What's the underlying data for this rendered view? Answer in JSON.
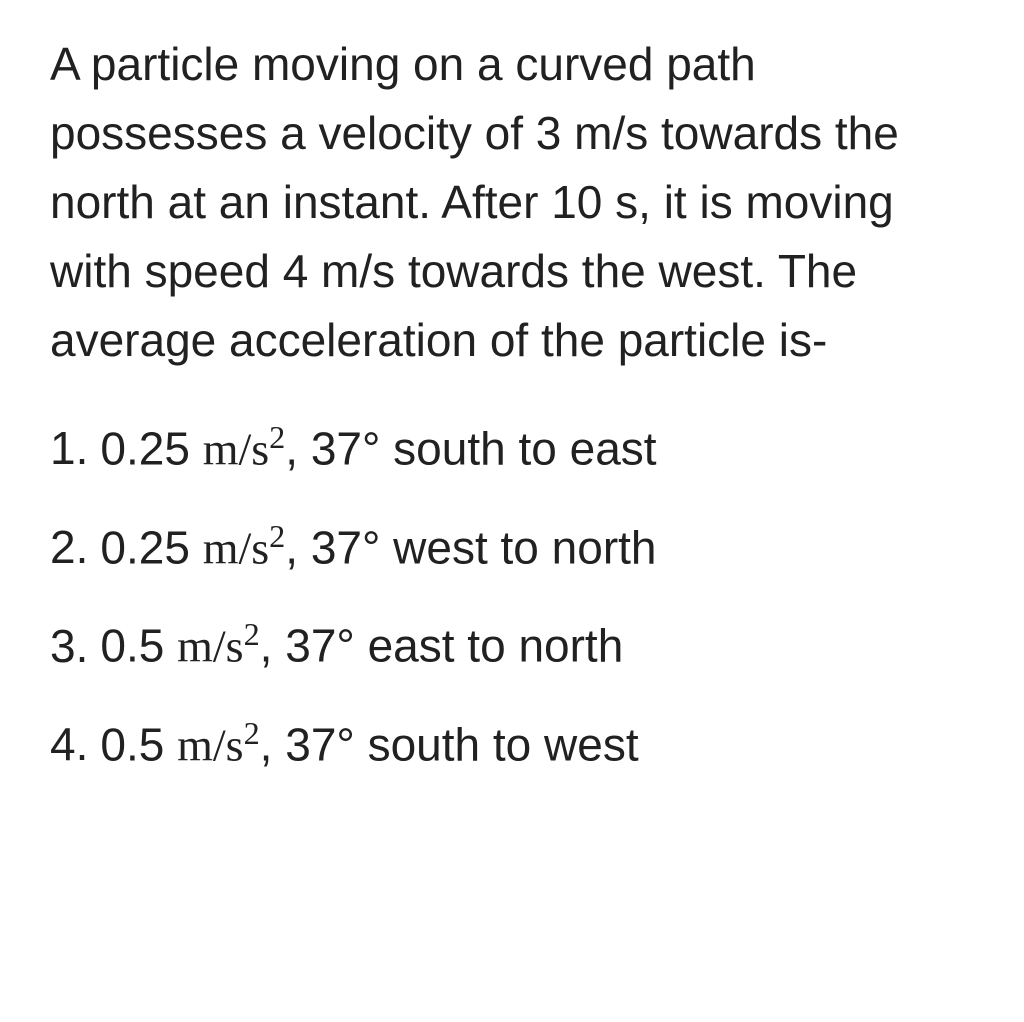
{
  "question": {
    "text": "A particle moving on a curved path possesses a velocity of 3 m/s towards the north at an instant. After 10 s, it is moving with speed 4 m/s towards the west. The average acceleration of the particle is-",
    "fontsize": 46,
    "color": "#212121"
  },
  "options": [
    {
      "number": "1.",
      "value": "0.25",
      "unit_prefix": "m",
      "unit_slash": "/",
      "unit_s": "s",
      "unit_exp": "2",
      "separator": ", ",
      "angle": "37°",
      "direction": " south to east"
    },
    {
      "number": "2.",
      "value": "0.25",
      "unit_prefix": "m",
      "unit_slash": "/",
      "unit_s": "s",
      "unit_exp": "2",
      "separator": ", ",
      "angle": "37°",
      "direction": " west to north"
    },
    {
      "number": "3.",
      "value": "0.5",
      "unit_prefix": "m",
      "unit_slash": "/",
      "unit_s": "s",
      "unit_exp": "2",
      "separator": ", ",
      "angle": "37°",
      "direction": " east to north"
    },
    {
      "number": "4.",
      "value": "0.5",
      "unit_prefix": "m",
      "unit_slash": "/",
      "unit_s": "s",
      "unit_exp": "2",
      "separator": ", ",
      "angle": "37°",
      "direction": " south to west"
    }
  ],
  "styling": {
    "background_color": "#ffffff",
    "text_color": "#212121",
    "option_fontsize": 46,
    "option_gap": 32,
    "font_family": "Arial, Helvetica, sans-serif",
    "unit_font_family": "Times New Roman, Times, serif"
  }
}
